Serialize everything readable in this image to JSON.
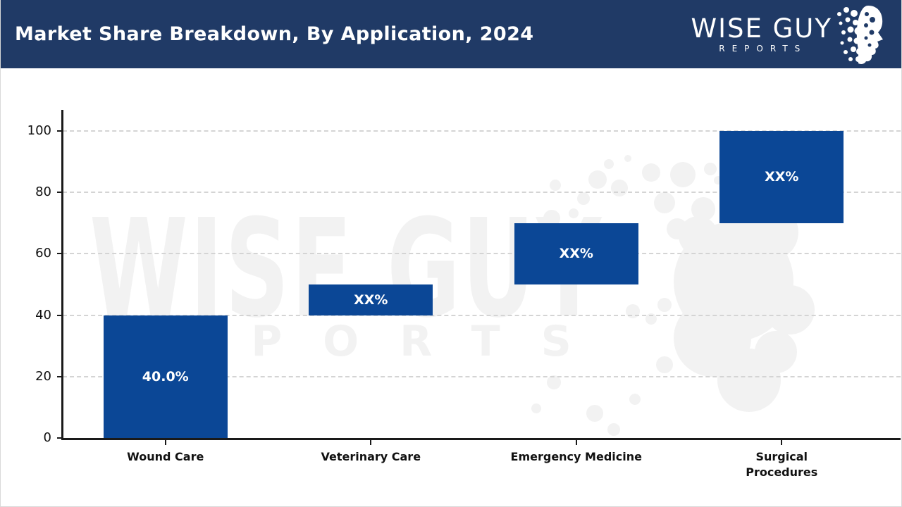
{
  "header": {
    "title": "Market Share Breakdown, By Application, 2024",
    "bg_color": "#203a66",
    "logo": {
      "line1": "WISE GUY",
      "line2": "REPORTS"
    }
  },
  "watermark": {
    "line1": "WISE GUY",
    "line2": "REPORTS"
  },
  "chart_data": {
    "type": "bar",
    "subtype": "floating-waterfall",
    "title": "Market Share Breakdown, By Application, 2024",
    "categories": [
      "Wound Care",
      "Veterinary Care",
      "Emergency Medicine",
      "Surgical\nProcedures"
    ],
    "bars": [
      {
        "category": "Wound Care",
        "start": 0,
        "end": 40,
        "label": "40.0%"
      },
      {
        "category": "Veterinary Care",
        "start": 40,
        "end": 50,
        "label": "XX%"
      },
      {
        "category": "Emergency Medicine",
        "start": 50,
        "end": 70,
        "label": "XX%"
      },
      {
        "category": "Surgical Procedures",
        "start": 70,
        "end": 100,
        "label": "XX%"
      }
    ],
    "xlabel": "",
    "ylabel": "",
    "yticks": [
      0,
      20,
      40,
      60,
      80,
      100
    ],
    "ylim": [
      0,
      107
    ],
    "grid": "horizontal-dashed",
    "legend": "none",
    "colors": {
      "bar": "#0b4796",
      "bar_label": "#ffffff",
      "axis": "#1a1a1a",
      "grid": "#d4d4d4",
      "tick_label": "#111111",
      "watermark": "#f2f2f2"
    }
  }
}
